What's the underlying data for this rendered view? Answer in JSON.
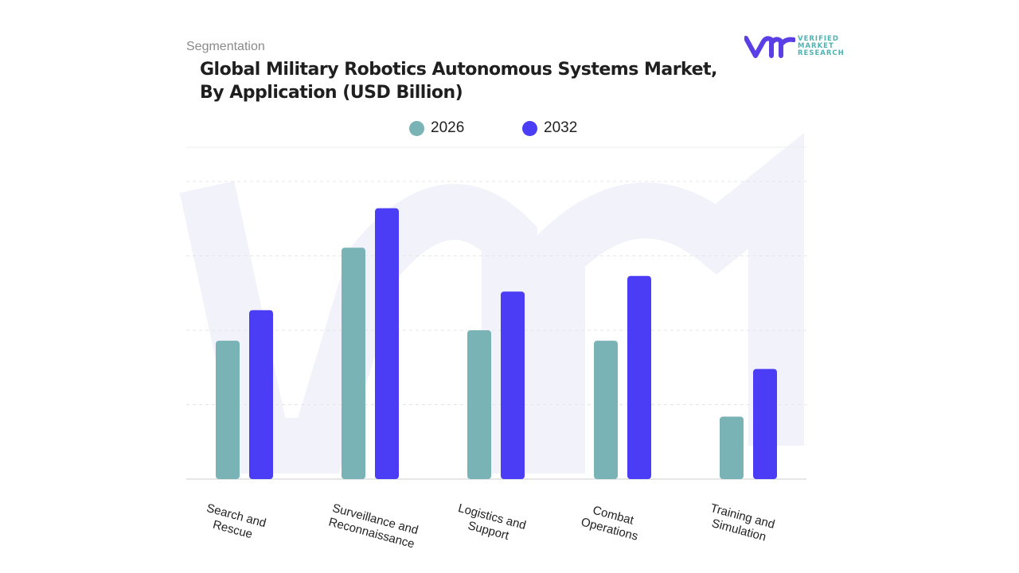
{
  "header": {
    "segment_label": "Segmentation",
    "title_line1": "Global Military Robotics Autonomous Systems Market,",
    "title_line2": "By Application (USD Billion)"
  },
  "logo": {
    "text_line1": "VERIFIED",
    "text_line2": "MARKET",
    "text_line3": "RESEARCH",
    "mark": "vmr"
  },
  "chart_data": {
    "type": "bar",
    "title": "Global Military Robotics Autonomous Systems Market, By Application (USD Billion)",
    "categories": [
      "Search and Rescue",
      "Surveillance and Reconnaissance",
      "Logistics and Support",
      "Combat Operations",
      "Training and Simulation"
    ],
    "series": [
      {
        "name": "2026",
        "color": "#7ab3b6",
        "values": [
          1.86,
          3.11,
          2.0,
          1.86,
          0.84
        ]
      },
      {
        "name": "2032",
        "color": "#4b3cf5",
        "values": [
          2.27,
          3.64,
          2.52,
          2.73,
          1.48
        ]
      }
    ],
    "ylim": [
      0,
      4
    ],
    "grid": true,
    "legend_position": "top-center",
    "y_axis_tick_labels_shown": false
  }
}
